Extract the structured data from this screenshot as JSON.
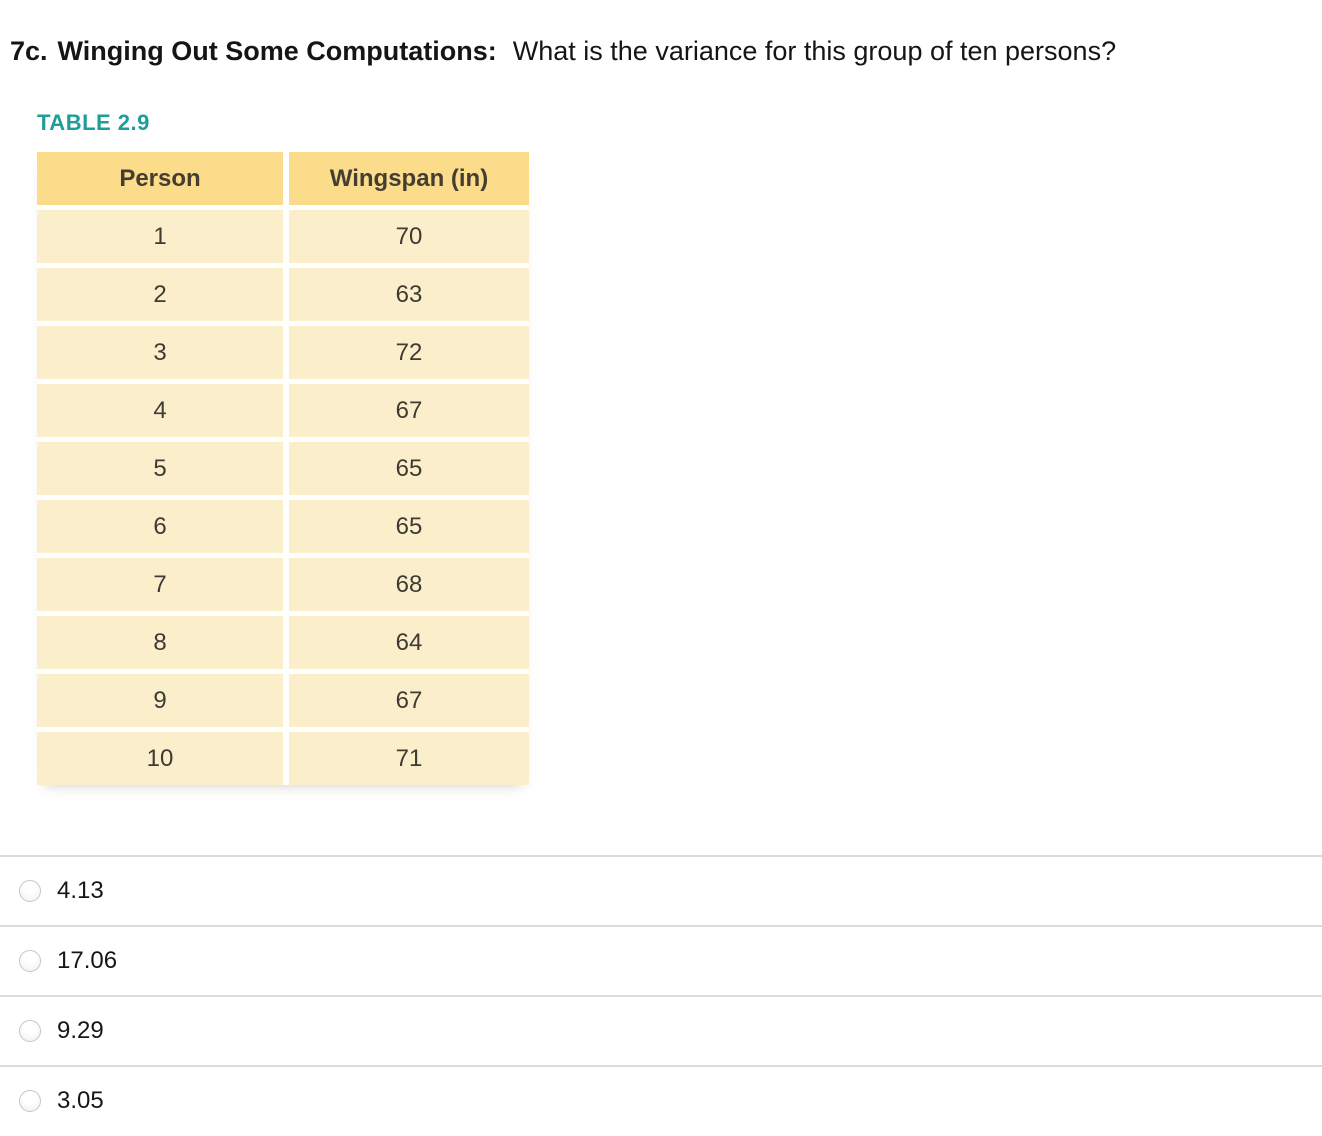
{
  "question": {
    "number": "7c.",
    "title": "Winging Out Some Computations:",
    "prompt": "What is the variance for this group of ten persons?"
  },
  "table": {
    "caption": "TABLE 2.9",
    "columns": {
      "person": "Person",
      "wingspan": "Wingspan (in)"
    },
    "rows": [
      {
        "person": "1",
        "wingspan": "70"
      },
      {
        "person": "2",
        "wingspan": "63"
      },
      {
        "person": "3",
        "wingspan": "72"
      },
      {
        "person": "4",
        "wingspan": "67"
      },
      {
        "person": "5",
        "wingspan": "65"
      },
      {
        "person": "6",
        "wingspan": "65"
      },
      {
        "person": "7",
        "wingspan": "68"
      },
      {
        "person": "8",
        "wingspan": "64"
      },
      {
        "person": "9",
        "wingspan": "67"
      },
      {
        "person": "10",
        "wingspan": "71"
      }
    ]
  },
  "options": [
    {
      "label": "4.13",
      "selected": false
    },
    {
      "label": "17.06",
      "selected": false
    },
    {
      "label": "9.29",
      "selected": false
    },
    {
      "label": "3.05",
      "selected": false
    }
  ],
  "colors": {
    "table_header_bg": "#fadc8b",
    "table_row_bg": "#fbefcb",
    "table_text": "#3f3a33",
    "caption_teal": "#1f9e99",
    "divider": "#dcdcdc"
  }
}
